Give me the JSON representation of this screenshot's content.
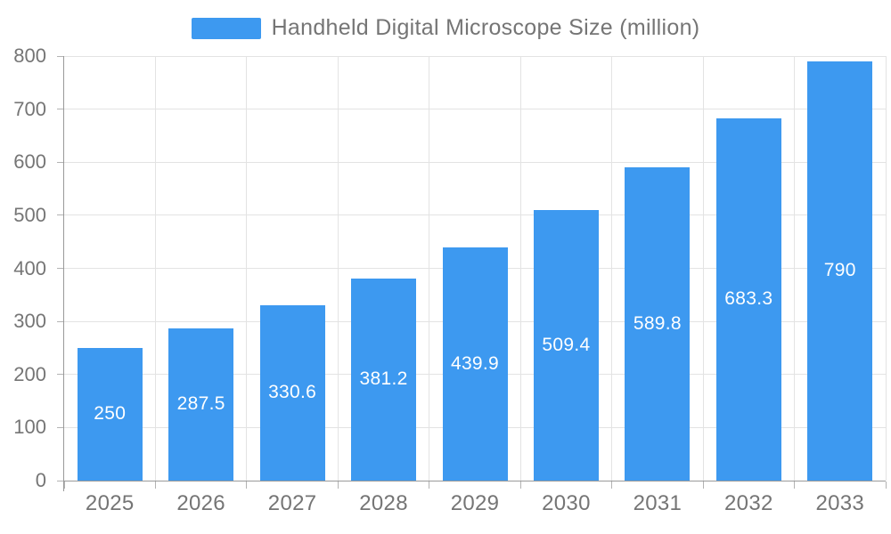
{
  "chart_data": {
    "type": "bar",
    "title": "Handheld Digital Microscope Size (million)",
    "categories": [
      "2025",
      "2026",
      "2027",
      "2028",
      "2029",
      "2030",
      "2031",
      "2032",
      "2033"
    ],
    "values": [
      250,
      287.5,
      330.6,
      381.2,
      439.9,
      509.4,
      589.8,
      683.3,
      790
    ],
    "bar_labels": [
      "250",
      "287.5",
      "330.6",
      "381.2",
      "439.9",
      "509.4",
      "589.8",
      "683.3",
      "790"
    ],
    "xlabel": "",
    "ylabel": "",
    "ylim": [
      0,
      800
    ],
    "yticks": [
      0,
      100,
      200,
      300,
      400,
      500,
      600,
      700,
      800
    ],
    "ytick_labels": [
      "0",
      "100",
      "200",
      "300",
      "400",
      "500",
      "600",
      "700",
      "800"
    ],
    "grid": true,
    "legend_position": "top-center"
  },
  "legend": {
    "label": "Handheld Digital Microscope Size (million)"
  },
  "colors": {
    "bar": "#3D99F0",
    "bar_label_text": "#FFFFFF",
    "axis_text": "#757575",
    "legend_text": "#757575",
    "axis_line": "#999999",
    "tick": "#B3B3B3",
    "grid_line": "#E3E3E3",
    "background": "#FFFFFF"
  }
}
